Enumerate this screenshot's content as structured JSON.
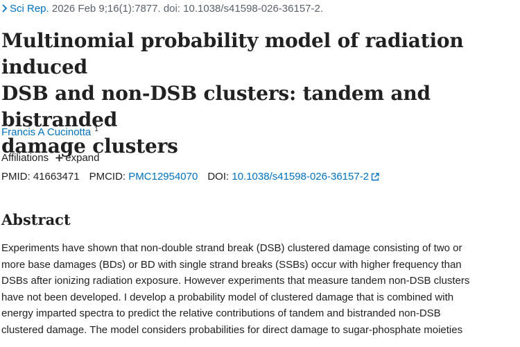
{
  "citation": {
    "journal": "Sci Rep.",
    "details": " 2026 Feb 9;16(1):7877. doi: 10.1038/s41598-026-36157-2."
  },
  "article": {
    "title_lines": [
      "Multinomial probability model of radiation induced",
      "DSB and non-DSB clusters: tandem and bistranded",
      "damage clusters"
    ]
  },
  "authors": {
    "name": "Francis A Cucinotta",
    "affiliation_ref": "1"
  },
  "affiliations": {
    "label": "Affiliations",
    "expand_label": "expand"
  },
  "identifiers": {
    "pmid_label": "PMID:",
    "pmid": "41663471",
    "pmcid_label": "PMCID:",
    "pmcid": "PMC12954070",
    "doi_label": "DOI:",
    "doi": "10.1038/s41598-026-36157-2"
  },
  "abstract": {
    "heading": "Abstract",
    "lines": [
      "Experiments have shown that non-double strand break (DSB) clustered damage consisting of two or",
      "more base damages (BDs) or BD with single strand breaks (SSBs) occur with higher frequency than",
      "DSBs after ionizing radiation exposure. However experiments that measure tandem non-DSB clusters",
      "have not been developed. I develop a probability model of clustered damage that is combined with",
      "energy imparted spectra to predict the relative contributions of tandem and bistranded non-DSB",
      "clustered damage. The model considers probabilities for direct damage to sugar-phosphate moieties"
    ]
  },
  "icons": {
    "citation_chevron": "chevron-right-icon",
    "expand": "plus-icon",
    "doi_external": "external-link-icon"
  },
  "colors": {
    "link": "#0071bc",
    "text": "#212121",
    "muted": "#5b616b"
  }
}
